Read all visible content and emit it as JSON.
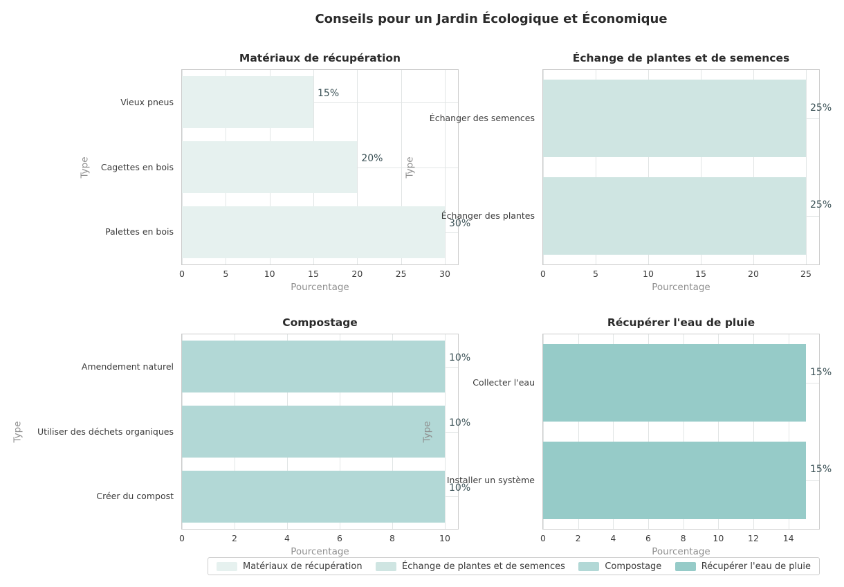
{
  "figure": {
    "title": "Conseils pour un Jardin Écologique et Économique",
    "layout": "2x2 grid of horizontal bar charts"
  },
  "palette": {
    "bar_colors": [
      "#e6f1ef",
      "#cfe5e2",
      "#b2d8d6",
      "#96cbc8"
    ],
    "grid_color": "#e1e5e5",
    "border_color": "#cccccc",
    "title_color": "#2b2b2b",
    "tick_color": "#3b3b3b",
    "axis_label_color": "#8f8f8f",
    "value_label_color": "#3a5055",
    "legend_border_color": "#cccccc",
    "background": "#ffffff"
  },
  "chart_data": [
    {
      "type": "bar",
      "orientation": "horizontal",
      "position": {
        "row": 0,
        "col": 0
      },
      "title": "Matériaux de récupération",
      "categories": [
        "Vieux pneus",
        "Cagettes en bois",
        "Palettes en bois"
      ],
      "values": [
        15,
        20,
        30
      ],
      "value_labels": [
        "15%",
        "20%",
        "30%"
      ],
      "xlabel": "Pourcentage",
      "ylabel": "Type",
      "xticks": [
        0,
        5,
        10,
        15,
        20,
        25,
        30
      ],
      "xlim": [
        0,
        31.5
      ],
      "grid": true,
      "bar_color": "#e6f1ef"
    },
    {
      "type": "bar",
      "orientation": "horizontal",
      "position": {
        "row": 0,
        "col": 1
      },
      "title": "Échange de plantes et de semences",
      "categories": [
        "Échanger des semences",
        "Échanger des plantes"
      ],
      "values": [
        25,
        25
      ],
      "value_labels": [
        "25%",
        "25%"
      ],
      "xlabel": "Pourcentage",
      "ylabel": "Type",
      "xticks": [
        0,
        5,
        10,
        15,
        20,
        25
      ],
      "xlim": [
        0,
        26.25
      ],
      "grid": true,
      "bar_color": "#cfe5e2"
    },
    {
      "type": "bar",
      "orientation": "horizontal",
      "position": {
        "row": 1,
        "col": 0
      },
      "title": "Compostage",
      "categories": [
        "Amendement naturel",
        "Utiliser des déchets organiques",
        "Créer du compost"
      ],
      "values": [
        10,
        10,
        10
      ],
      "value_labels": [
        "10%",
        "10%",
        "10%"
      ],
      "xlabel": "Pourcentage",
      "ylabel": "Type",
      "xticks": [
        0,
        2,
        4,
        6,
        8,
        10
      ],
      "xlim": [
        0,
        10.5
      ],
      "grid": true,
      "bar_color": "#b2d8d6"
    },
    {
      "type": "bar",
      "orientation": "horizontal",
      "position": {
        "row": 1,
        "col": 1
      },
      "title": "Récupérer l'eau de pluie",
      "categories": [
        "Collecter l'eau",
        "Installer un système"
      ],
      "values": [
        15,
        15
      ],
      "value_labels": [
        "15%",
        "15%"
      ],
      "xlabel": "Pourcentage",
      "ylabel": "Type",
      "xticks": [
        0,
        2,
        4,
        6,
        8,
        10,
        12,
        14
      ],
      "xlim": [
        0,
        15.75
      ],
      "grid": true,
      "bar_color": "#96cbc8"
    }
  ],
  "legend": {
    "position": "lower center",
    "items": [
      {
        "label": "Matériaux de récupération",
        "color": "#e6f1ef"
      },
      {
        "label": "Échange de plantes et de semences",
        "color": "#cfe5e2"
      },
      {
        "label": "Compostage",
        "color": "#b2d8d6"
      },
      {
        "label": "Récupérer l'eau de pluie",
        "color": "#96cbc8"
      }
    ]
  }
}
